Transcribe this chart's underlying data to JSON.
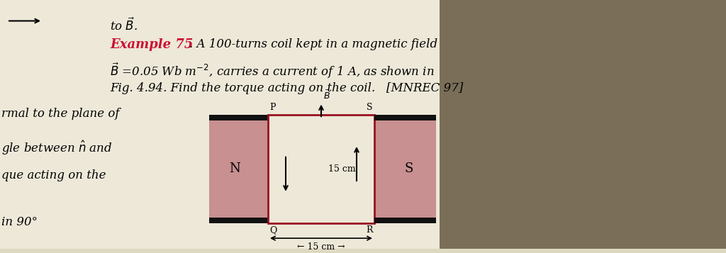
{
  "bg_color": "#ddd8c0",
  "page_bg": "#ede8d8",
  "dark_bg": "#7a6e58",
  "title_color": "#cc1133",
  "pole_fill": "#c89090",
  "coil_color": "#991122",
  "font_size_body": 12,
  "font_size_small": 10,
  "to_B": "to $\\vec{B}$.",
  "example_label": "Example 75",
  "line1_rest": ". A 100-turns coil kept in a magnetic field",
  "line2": "$\\vec{B}$ =0.05 Wb m$^{-2}$, carries a current of 1 A, as shown in",
  "line3": "Fig. 4.94. Find the torque acting on the coil.   [MNREC 97]",
  "left1": "rmal to the plane of",
  "left2": "gle between $\\hat{n}$ and",
  "left3": "que acting on the",
  "left4": "in 90°",
  "label_P": "P",
  "label_Q": "Q",
  "label_R": "R",
  "label_S_coil": "S",
  "label_B": "$\\vec{B}$",
  "label_N": "N",
  "label_S": "S",
  "dim_label": "← 15 cm →",
  "vert_label": "15 cm"
}
